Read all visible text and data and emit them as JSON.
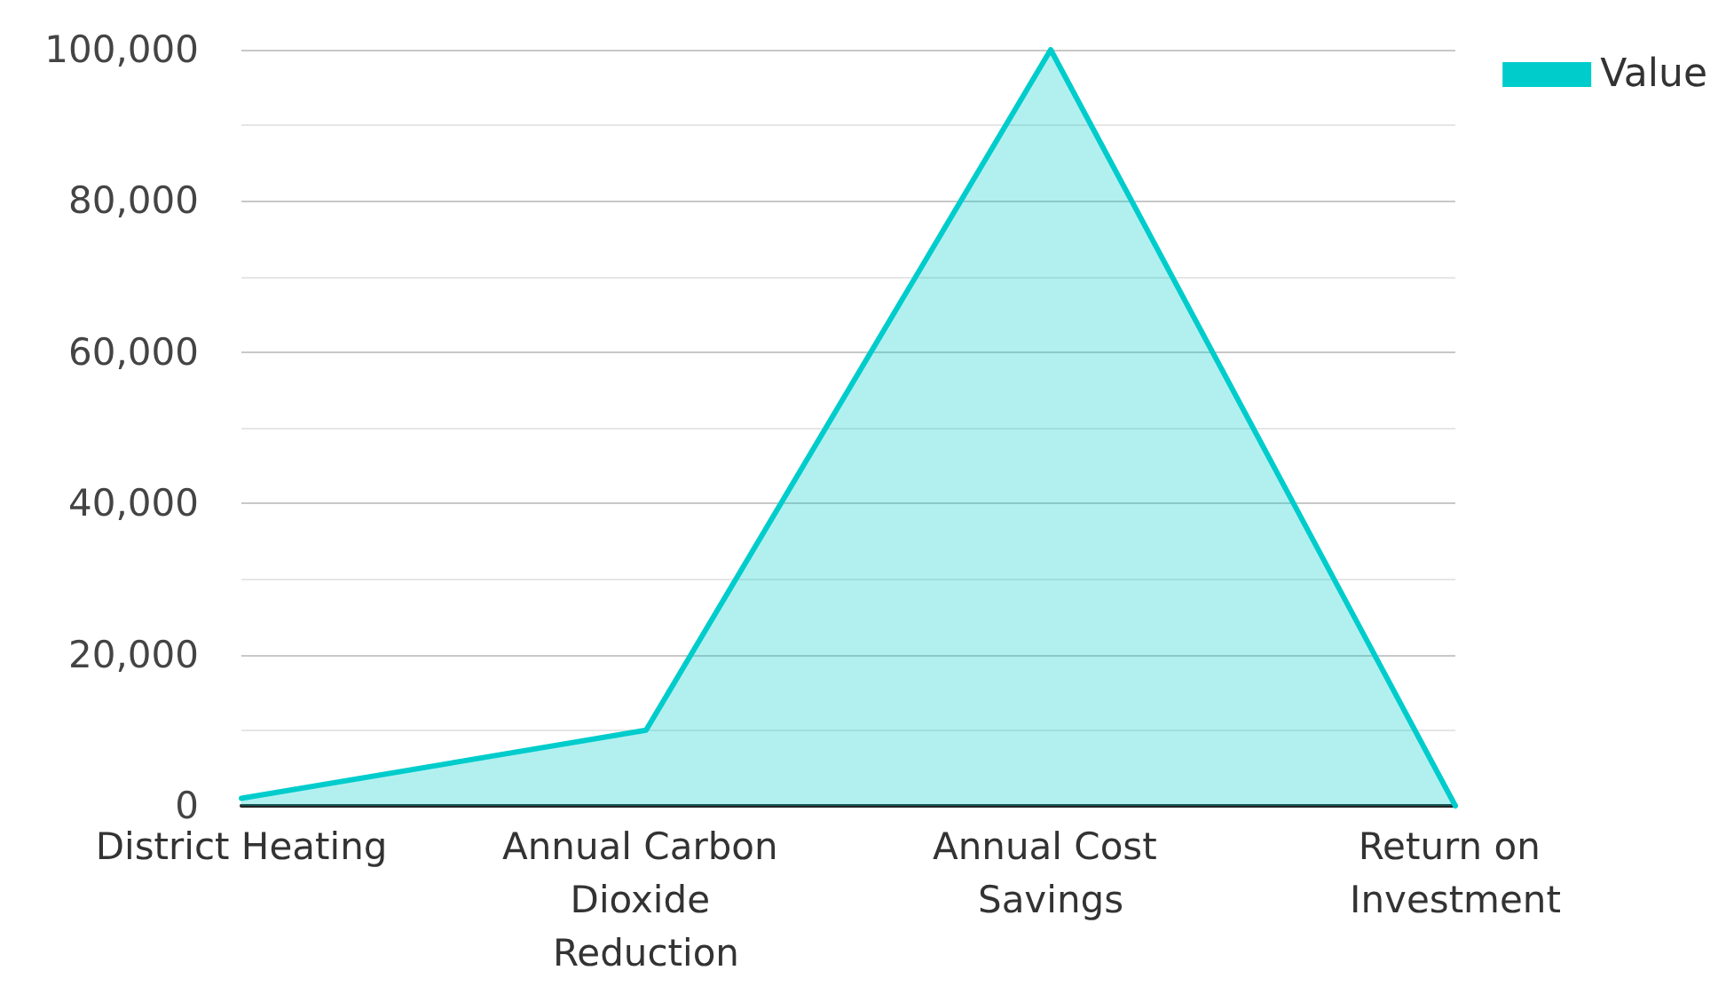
{
  "chart_data": {
    "type": "area",
    "categories": [
      "District Heating",
      "Annual Carbon Dioxide Reduction",
      "Annual Cost Savings",
      "Return on Investment"
    ],
    "series": [
      {
        "name": "Value",
        "color": "#00cccc",
        "values": [
          1000,
          10000,
          100000,
          0
        ]
      }
    ],
    "ylim": [
      0,
      100000
    ],
    "yticks": [
      0,
      {
        "value": 10000,
        "label": null
      },
      {
        "value": 20000,
        "label": "20,000"
      },
      {
        "value": 30000,
        "label": null
      },
      {
        "value": 40000,
        "label": "40,000"
      },
      {
        "value": 50000,
        "label": null
      },
      {
        "value": 60000,
        "label": "60,000"
      },
      {
        "value": 70000,
        "label": null
      },
      {
        "value": 80000,
        "label": "80,000"
      },
      {
        "value": 90000,
        "label": null
      },
      {
        "value": 100000,
        "label": "100,000"
      }
    ],
    "grid": "y",
    "legend": "top right",
    "marker": "none",
    "line_style": "solid"
  }
}
